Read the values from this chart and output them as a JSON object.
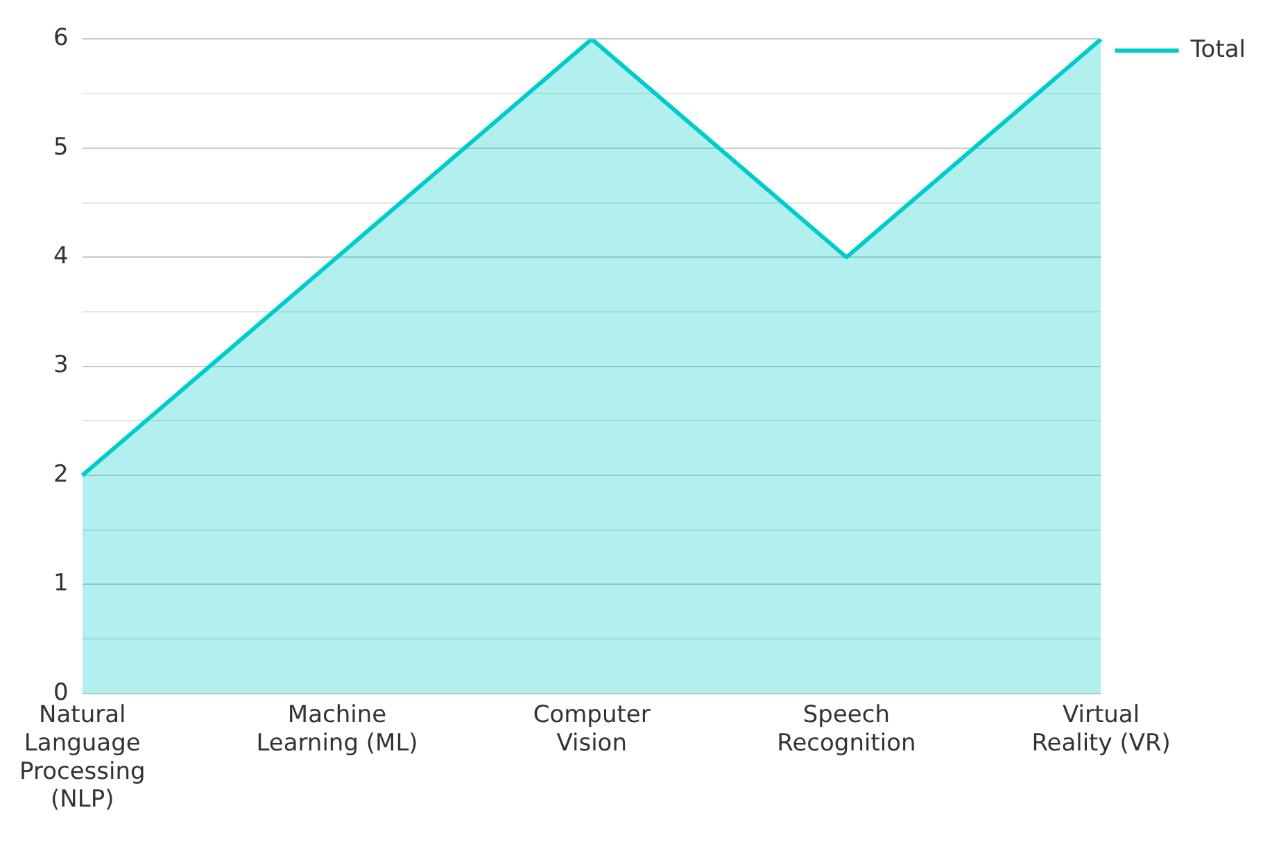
{
  "chart_data": {
    "type": "area",
    "categories": [
      "Natural Language Processing (NLP)",
      "Machine Learning (ML)",
      "Computer Vision",
      "Speech Recognition",
      "Virtual Reality (VR)"
    ],
    "series": [
      {
        "name": "Total",
        "color": "#00cccc",
        "values": [
          2,
          4,
          6,
          4,
          6
        ]
      }
    ],
    "ylim": [
      0,
      6
    ],
    "yticks": [
      0,
      {
        "value": 0.5,
        "label": null
      },
      1,
      {
        "value": 1.5,
        "label": null
      },
      2,
      {
        "value": 2.5,
        "label": null
      },
      3,
      {
        "value": 3.5,
        "label": null
      },
      4,
      {
        "value": 4.5,
        "label": null
      },
      5,
      {
        "value": 5.5,
        "label": null
      },
      6
    ],
    "grid": "y",
    "legend": "top right"
  }
}
